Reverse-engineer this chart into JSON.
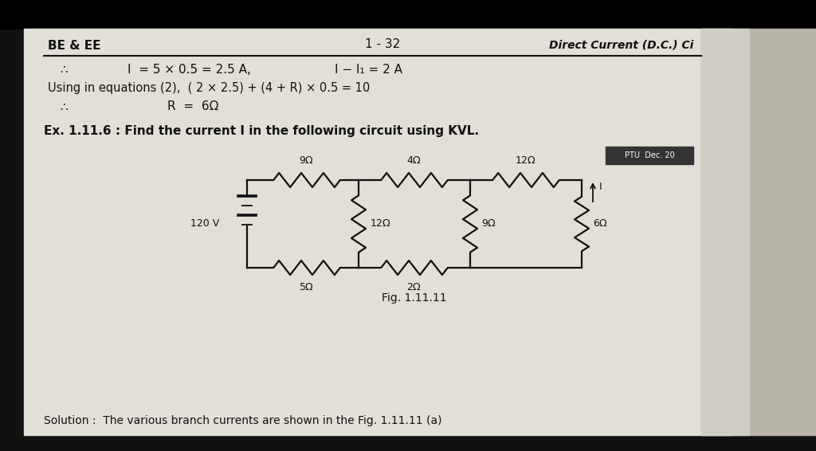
{
  "bg_outer": "#111111",
  "bg_page": "#dddbd2",
  "bg_page_right": "#c8c4b8",
  "text_color": "#111111",
  "header_left": "BE & EE",
  "header_center": "1 - 32",
  "header_right": "Direct Current (D.C.) Ci",
  "line1_left": "I  = 5 × 0.5 = 2.5 A,",
  "line1_right": "I − I₁ = 2 A",
  "line2": "Using in equations (2),  ( 2 × 2.5) + (4 + R) × 0.5 = 10",
  "line3": "R  =  6Ω",
  "ex_line": "Ex. 1.11.6 : Find the current I in the following circuit using KVL.",
  "fig_label": "Fig. 1.11.11",
  "solution_line": "Solution :  The various branch currents are shown in the Fig. 1.11.11 (a)",
  "therefore_symbol": "∴",
  "stamp_color": "#2a2a2a",
  "stamp_text": "PTU  Dec. 20",
  "circuit_xL": 3.05,
  "circuit_xA": 4.55,
  "circuit_xB": 5.95,
  "circuit_xR": 7.35,
  "circuit_yT": 3.42,
  "circuit_yB": 2.18
}
